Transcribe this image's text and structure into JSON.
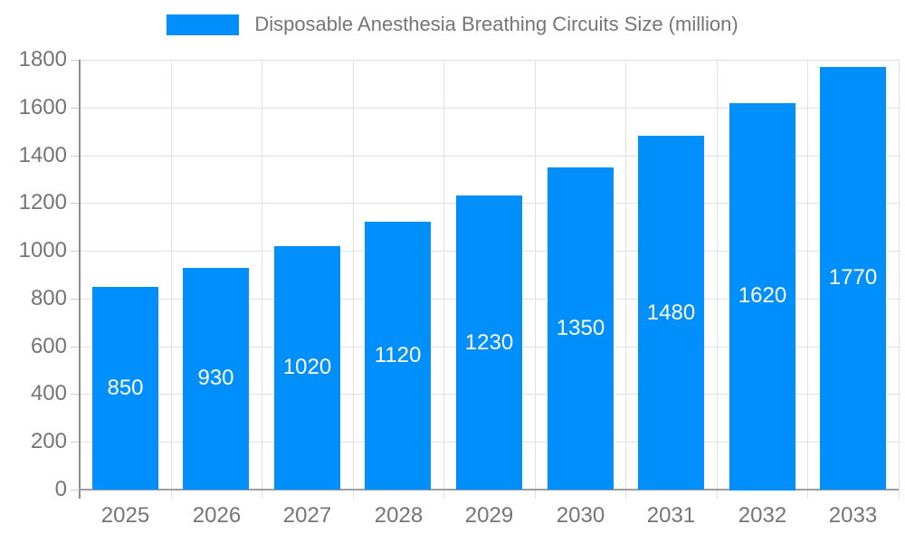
{
  "chart_data": {
    "type": "bar",
    "title": "Disposable Anesthesia Breathing Circuits Size (million)",
    "categories": [
      "2025",
      "2026",
      "2027",
      "2028",
      "2029",
      "2030",
      "2031",
      "2032",
      "2033"
    ],
    "values": [
      850,
      930,
      1020,
      1120,
      1230,
      1350,
      1480,
      1620,
      1770
    ],
    "xlabel": "",
    "ylabel": "",
    "ylim": [
      0,
      1800
    ],
    "ytick_step": 200,
    "yticks": [
      0,
      200,
      400,
      600,
      800,
      1000,
      1200,
      1400,
      1600,
      1800
    ],
    "grid": true,
    "legend_position": "top",
    "value_labels": "inside-center",
    "colors": {
      "bar": "#008FFB",
      "axis_text": "#757575",
      "value_text": "#ffffff",
      "gridline": "#e0e0e0",
      "tick": "#cccccc",
      "y_axis_line": "#8c8c8c",
      "x_axis_line": "#9e9e9e",
      "background": "#ffffff"
    }
  }
}
